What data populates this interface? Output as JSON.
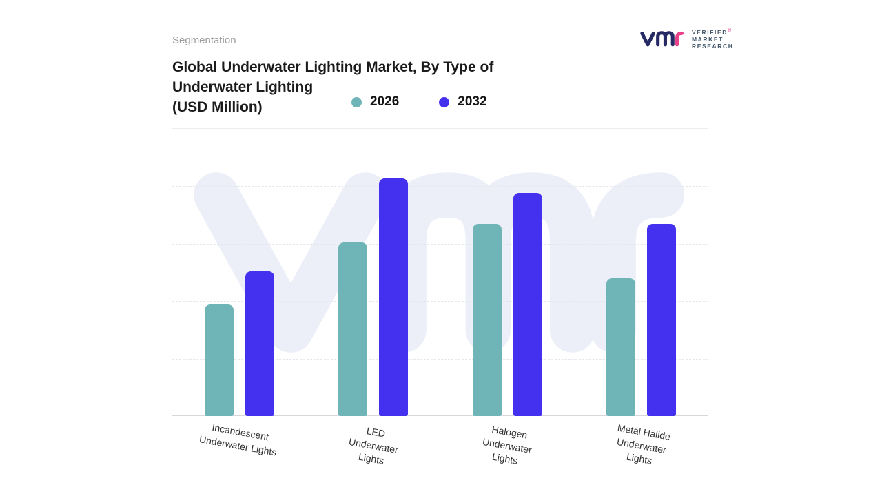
{
  "header": {
    "eyebrow": "Segmentation",
    "title": "Global Underwater Lighting Market, By Type of\nUnderwater Lighting\n(USD Million)"
  },
  "logo": {
    "lines": [
      "VERIFIED",
      "MARKET",
      "RESEARCH"
    ],
    "registered": "®",
    "mark_color_primary": "#262a64",
    "mark_color_accent": "#e9408a",
    "text_color": "#44576b"
  },
  "watermark": {
    "text": "vmr",
    "color": "#eceff8"
  },
  "chart_data": {
    "type": "bar",
    "title": "Global Underwater Lighting Market, By Type of Underwater Lighting (USD Million)",
    "categories": [
      "Incandescent\nUnderwater Lights",
      "LED\nUnderwater\nLights",
      "Halogen\nUnderwater\nLights",
      "Metal Halide\nUnderwater\nLights"
    ],
    "series": [
      {
        "name": "2026",
        "color": "#6fb5b8",
        "values": [
          47,
          73,
          81,
          58
        ]
      },
      {
        "name": "2032",
        "color": "#4431f0",
        "values": [
          61,
          100,
          94,
          81
        ]
      }
    ],
    "ylim": [
      0,
      121
    ],
    "y_axis_labels_visible": false,
    "grid": "horizontal-dashed",
    "legend_position": "top-center",
    "note_units": "relative scale estimated from bar heights; no numeric axis shown"
  }
}
